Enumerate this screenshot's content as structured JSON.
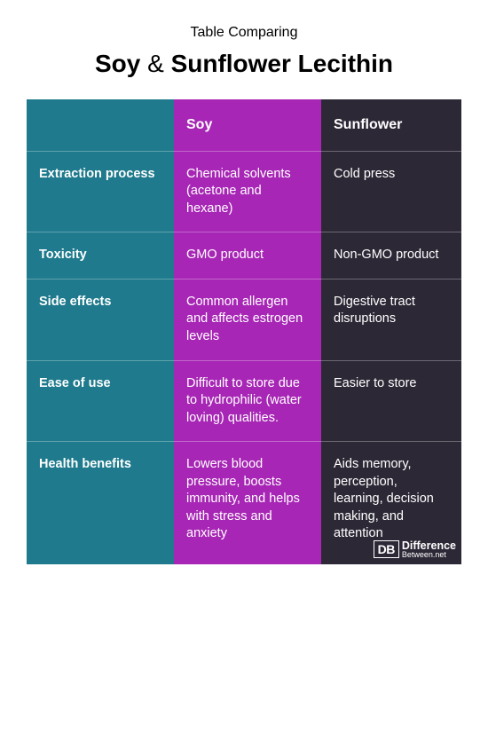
{
  "header": {
    "subtitle": "Table Comparing",
    "title_part1": "Soy",
    "title_amp": " & ",
    "title_part2": "Sunflower Lecithin"
  },
  "colors": {
    "col1_bg": "#1e7a8c",
    "col2_bg": "#a726b5",
    "col3_bg": "#2d2836",
    "text": "#ffffff",
    "page_bg": "#ffffff"
  },
  "columns": {
    "c1_header": "",
    "c2_header": "Soy",
    "c3_header": "Sunflower"
  },
  "rows": [
    {
      "label": "Extraction process",
      "soy": "Chemical solvents (acetone and hexane)",
      "sunflower": "Cold press"
    },
    {
      "label": "Toxicity",
      "soy": "GMO product",
      "sunflower": "Non-GMO product"
    },
    {
      "label": "Side effects",
      "soy": "Common allergen and affects estrogen levels",
      "sunflower": "Digestive tract disruptions"
    },
    {
      "label": "Ease of use",
      "soy": "Difficult to store due to hydrophilic (water loving) qualities.",
      "sunflower": "Easier to store"
    },
    {
      "label": "Health benefits",
      "soy": "Lowers blood pressure, boosts immunity, and helps with stress and anxiety",
      "sunflower": "Aids memory, perception, learning, decision making, and attention"
    }
  ],
  "logo": {
    "box": "DB",
    "line1": "Difference",
    "line2": "Between.net"
  }
}
